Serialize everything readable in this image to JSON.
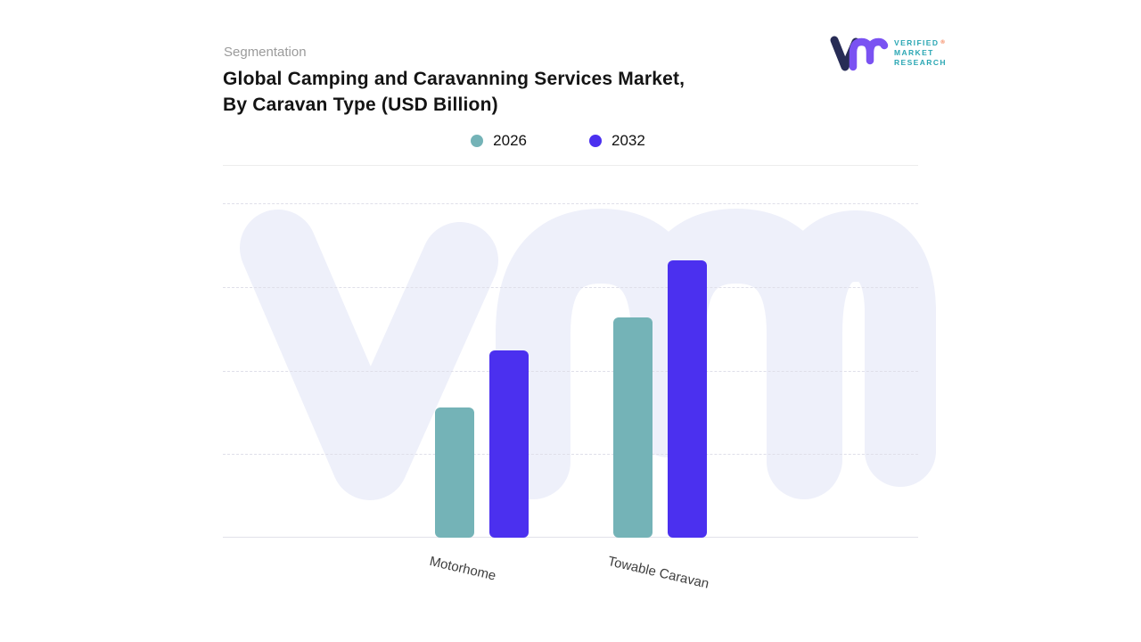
{
  "header": {
    "eyebrow": "Segmentation",
    "title_line1": "Global Camping and Caravanning Services Market,",
    "title_line2": "By Caravan  Type  (USD Billion)"
  },
  "logo": {
    "lines": [
      "VERIFIED",
      "MARKET",
      "RESEARCH"
    ],
    "registered": "®",
    "brand_teal": "#2ba7b4",
    "mark_navy": "#272c55",
    "mark_purple": "#7a52f2"
  },
  "chart_data": {
    "type": "bar",
    "title": "Global Camping and Caravanning Services Market, By Caravan Type (USD Billion)",
    "unit": "USD Billion",
    "categories": [
      "Motorhome",
      "Towable Caravan"
    ],
    "series": [
      {
        "name": "2026",
        "color": "#74b3b7",
        "values": [
          39,
          66
        ]
      },
      {
        "name": "2032",
        "color": "#4b30ef",
        "values": [
          56,
          83
        ]
      }
    ],
    "xlabel": "",
    "ylabel": "",
    "ylim": [
      0,
      100
    ],
    "grid": "horizontal-dashed",
    "legend_position": "top-center"
  }
}
